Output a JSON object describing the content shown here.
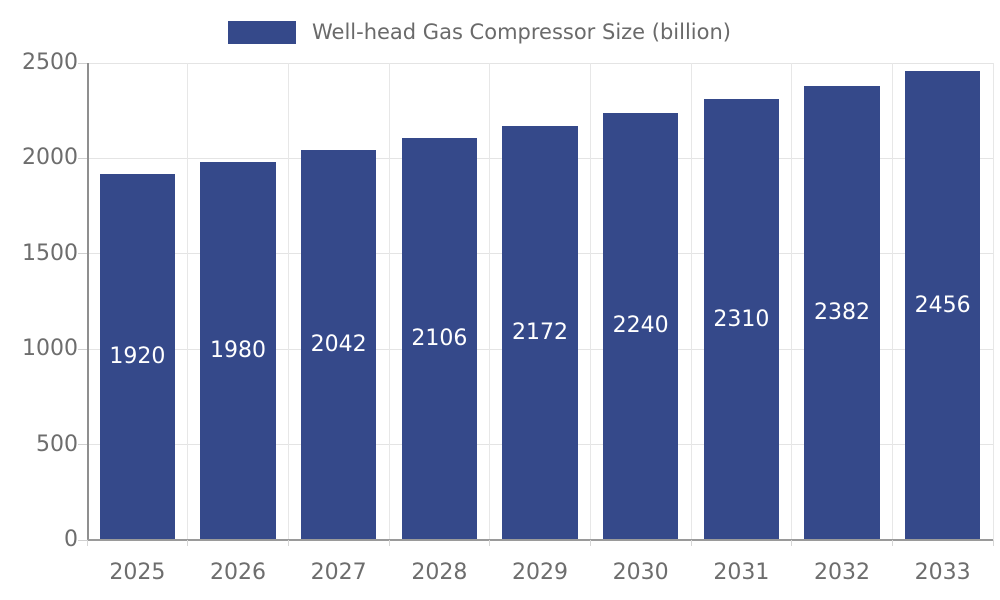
{
  "chart_data": {
    "type": "bar",
    "title": "",
    "legend_label": "Well-head Gas Compressor Size (billion)",
    "legend_position": "top-center",
    "categories": [
      "2025",
      "2026",
      "2027",
      "2028",
      "2029",
      "2030",
      "2031",
      "2032",
      "2033"
    ],
    "values": [
      1920,
      1980,
      2042,
      2106,
      2172,
      2240,
      2310,
      2382,
      2456
    ],
    "xlabel": "",
    "ylabel": "",
    "ylim": [
      0,
      2500
    ],
    "yticks": [
      0,
      500,
      1000,
      1500,
      2000,
      2500
    ],
    "grid": true,
    "bar_labels_inside": true
  },
  "colors": {
    "bar": "#35498a",
    "bar_label": "#ffffff",
    "axis_text": "#6d6d6d",
    "legend_text": "#6a6a6a",
    "grid": "#e5e5e5",
    "axis_line": "#969696",
    "background": "#ffffff"
  }
}
